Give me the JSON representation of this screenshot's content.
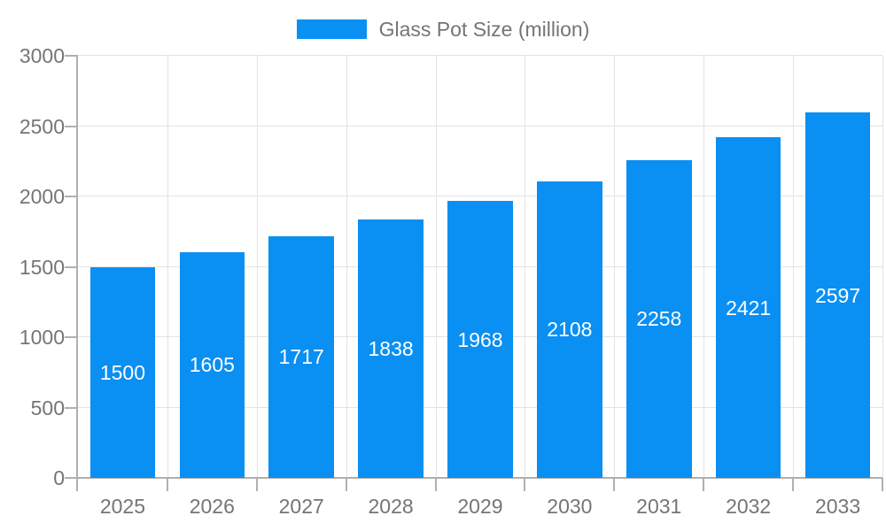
{
  "legend": {
    "label": "Glass Pot Size (million)"
  },
  "colors": {
    "bar": "#0a8ff2",
    "bar_label_text": "#ffffff",
    "axis_line": "#b0b0b0",
    "grid_line": "#e3e3e3",
    "axis_text": "#757575",
    "background": "#ffffff"
  },
  "chart_data": {
    "type": "bar",
    "title": "",
    "xlabel": "",
    "ylabel": "",
    "legend_entries": [
      "Glass Pot Size (million)"
    ],
    "legend_position": "top",
    "grid": true,
    "categories": [
      "2025",
      "2026",
      "2027",
      "2028",
      "2029",
      "2030",
      "2031",
      "2032",
      "2033"
    ],
    "series": [
      {
        "name": "Glass Pot Size (million)",
        "values": [
          1500,
          1605,
          1717,
          1838,
          1968,
          2108,
          2258,
          2421,
          2597
        ]
      }
    ],
    "bar_value_labels": [
      "1500",
      "1605",
      "1717",
      "1838",
      "1968",
      "2108",
      "2258",
      "2421",
      "2597"
    ],
    "ylim": [
      0,
      3000
    ],
    "yticks": [
      0,
      500,
      1000,
      1500,
      2000,
      2500,
      3000
    ],
    "ytick_labels": [
      "0",
      "500",
      "1000",
      "1500",
      "2000",
      "2500",
      "3000"
    ]
  }
}
